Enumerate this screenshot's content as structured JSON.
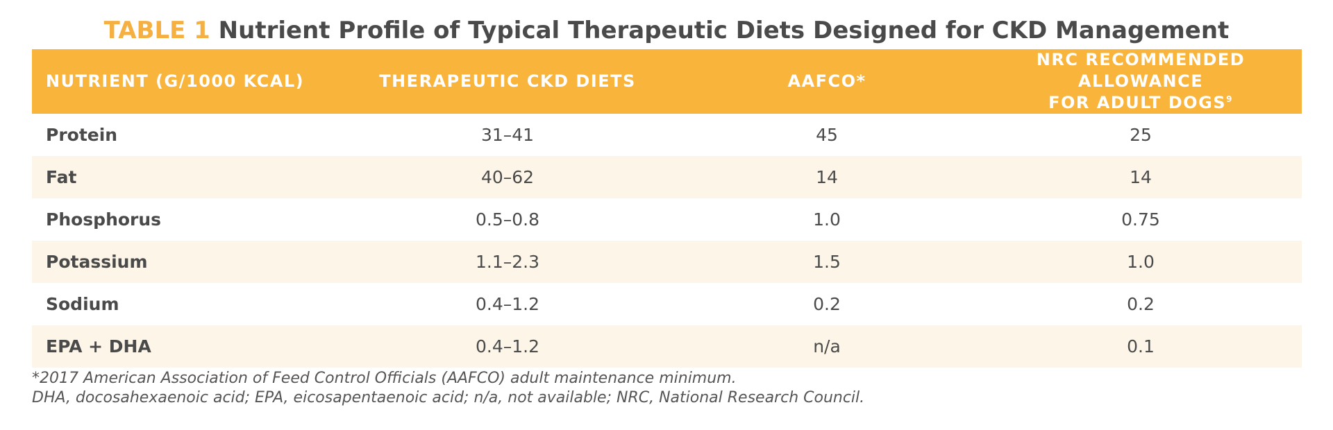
{
  "title": {
    "label": "TABLE 1",
    "text": "Nutrient Profile of Typical Therapeutic Diets Designed for CKD Management"
  },
  "table": {
    "headers": {
      "nutrient": "NUTRIENT (G/1000 KCAL)",
      "therapeutic": "THERAPEUTIC CKD DIETS",
      "aafco": "AAFCO*",
      "nrc_line1": "NRC RECOMMENDED ALLOWANCE",
      "nrc_line2": "FOR ADULT DOGS",
      "nrc_ref": "9"
    },
    "rows": [
      {
        "nutrient": "Protein",
        "therapeutic": "31–41",
        "aafco": "45",
        "nrc": "25"
      },
      {
        "nutrient": "Fat",
        "therapeutic": "40–62",
        "aafco": "14",
        "nrc": "14"
      },
      {
        "nutrient": "Phosphorus",
        "therapeutic": "0.5–0.8",
        "aafco": "1.0",
        "nrc": "0.75"
      },
      {
        "nutrient": "Potassium",
        "therapeutic": "1.1–2.3",
        "aafco": "1.5",
        "nrc": "1.0"
      },
      {
        "nutrient": "Sodium",
        "therapeutic": "0.4–1.2",
        "aafco": "0.2",
        "nrc": "0.2"
      },
      {
        "nutrient": "EPA + DHA",
        "therapeutic": "0.4–1.2",
        "aafco": "n/a",
        "nrc": "0.1"
      }
    ]
  },
  "footnotes": [
    "*2017 American Association of Feed Control Officials (AAFCO) adult maintenance minimum.",
    "DHA, docosahexaenoic acid; EPA, eicosapentaenoic acid; n/a, not available; NRC, National Research Council."
  ],
  "colors": {
    "header_bg": "#f9b43c",
    "title_label": "#f5b041",
    "stripe_bg": "#fdf6e8",
    "text": "#4a4a4a"
  }
}
